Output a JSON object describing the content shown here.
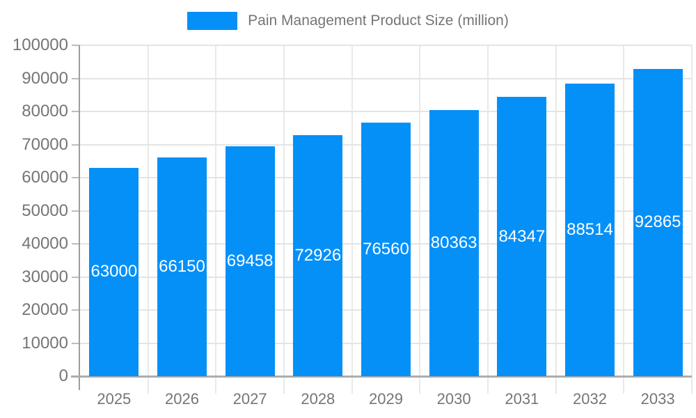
{
  "chart_data": {
    "type": "bar",
    "title": "Pain Management Product Size (million)",
    "categories": [
      "2025",
      "2026",
      "2027",
      "2028",
      "2029",
      "2030",
      "2031",
      "2032",
      "2033"
    ],
    "values": [
      63000,
      66150,
      69458,
      72926,
      76560,
      80363,
      84347,
      88514,
      92865
    ],
    "xlabel": "",
    "ylabel": "",
    "ylim": [
      0,
      100000
    ],
    "ytick_step": 10000,
    "ytick_labels": [
      "0",
      "10000",
      "20000",
      "30000",
      "40000",
      "50000",
      "60000",
      "70000",
      "80000",
      "90000",
      "100000"
    ],
    "grid": "horizontal-and-vertical",
    "legend_position": "top-center",
    "value_label_position": "inside-middle"
  },
  "colors": {
    "bar": "#0590F8",
    "bar_value_text": "#FFFFFF",
    "axis_text": "#757575",
    "legend_text": "#757575",
    "grid_horizontal": "#E4E4E4",
    "grid_vertical": "#E9E9E9",
    "axis_line": "#9E9E9E",
    "bottom_axis_line": "#ADADAD",
    "y_tick": "#BDBDBD",
    "background": "#FFFFFF"
  }
}
